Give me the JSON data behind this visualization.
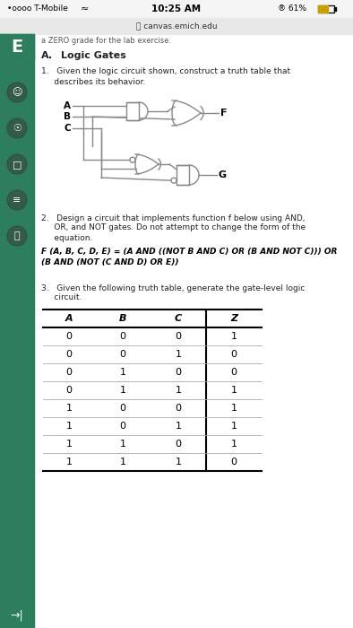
{
  "white": "#ffffff",
  "light_gray": "#f5f5f5",
  "mid_gray": "#e8e8e8",
  "dark_gray": "#888888",
  "sidebar_color": "#2d7d5f",
  "sidebar_icon_color": "#3a3a3a",
  "text_color": "#222222",
  "gray_text": "#555555",
  "battery_color": "#c8a000",
  "figsize": [
    3.94,
    7.0
  ],
  "dpi": 100,
  "truth_table": {
    "headers": [
      "A",
      "B",
      "C",
      "Z"
    ],
    "rows": [
      [
        0,
        0,
        0,
        1
      ],
      [
        0,
        0,
        1,
        0
      ],
      [
        0,
        1,
        0,
        0
      ],
      [
        0,
        1,
        1,
        1
      ],
      [
        1,
        0,
        0,
        1
      ],
      [
        1,
        0,
        1,
        1
      ],
      [
        1,
        1,
        0,
        1
      ],
      [
        1,
        1,
        1,
        0
      ]
    ]
  }
}
